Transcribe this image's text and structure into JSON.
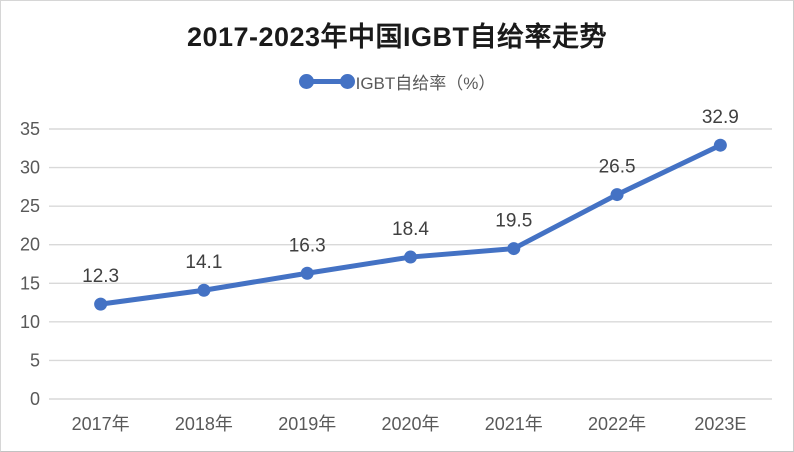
{
  "chart_data": {
    "type": "line",
    "title": "2017-2023年中国IGBT自给率走势",
    "legend": {
      "label": "IGBT自给率（%）",
      "position": "top",
      "marker": "line-with-dots"
    },
    "categories": [
      "2017年",
      "2018年",
      "2019年",
      "2020年",
      "2021年",
      "2022年",
      "2023E"
    ],
    "series": [
      {
        "name": "IGBT自给率（%）",
        "values": [
          12.3,
          14.1,
          16.3,
          18.4,
          19.5,
          26.5,
          32.9
        ]
      }
    ],
    "xlabel": "",
    "ylabel": "",
    "ylim": [
      0,
      35
    ],
    "ytick_step": 5,
    "yticks": [
      0,
      5,
      10,
      15,
      20,
      25,
      30,
      35
    ],
    "grid": "horizontal",
    "data_labels_shown": true,
    "colors": {
      "series": "#4472C4",
      "gridline": "#D9D9D9",
      "tick_label": "#595959",
      "data_label": "#404040",
      "title": "#1a1a1a",
      "legend_label": "#595959"
    }
  }
}
